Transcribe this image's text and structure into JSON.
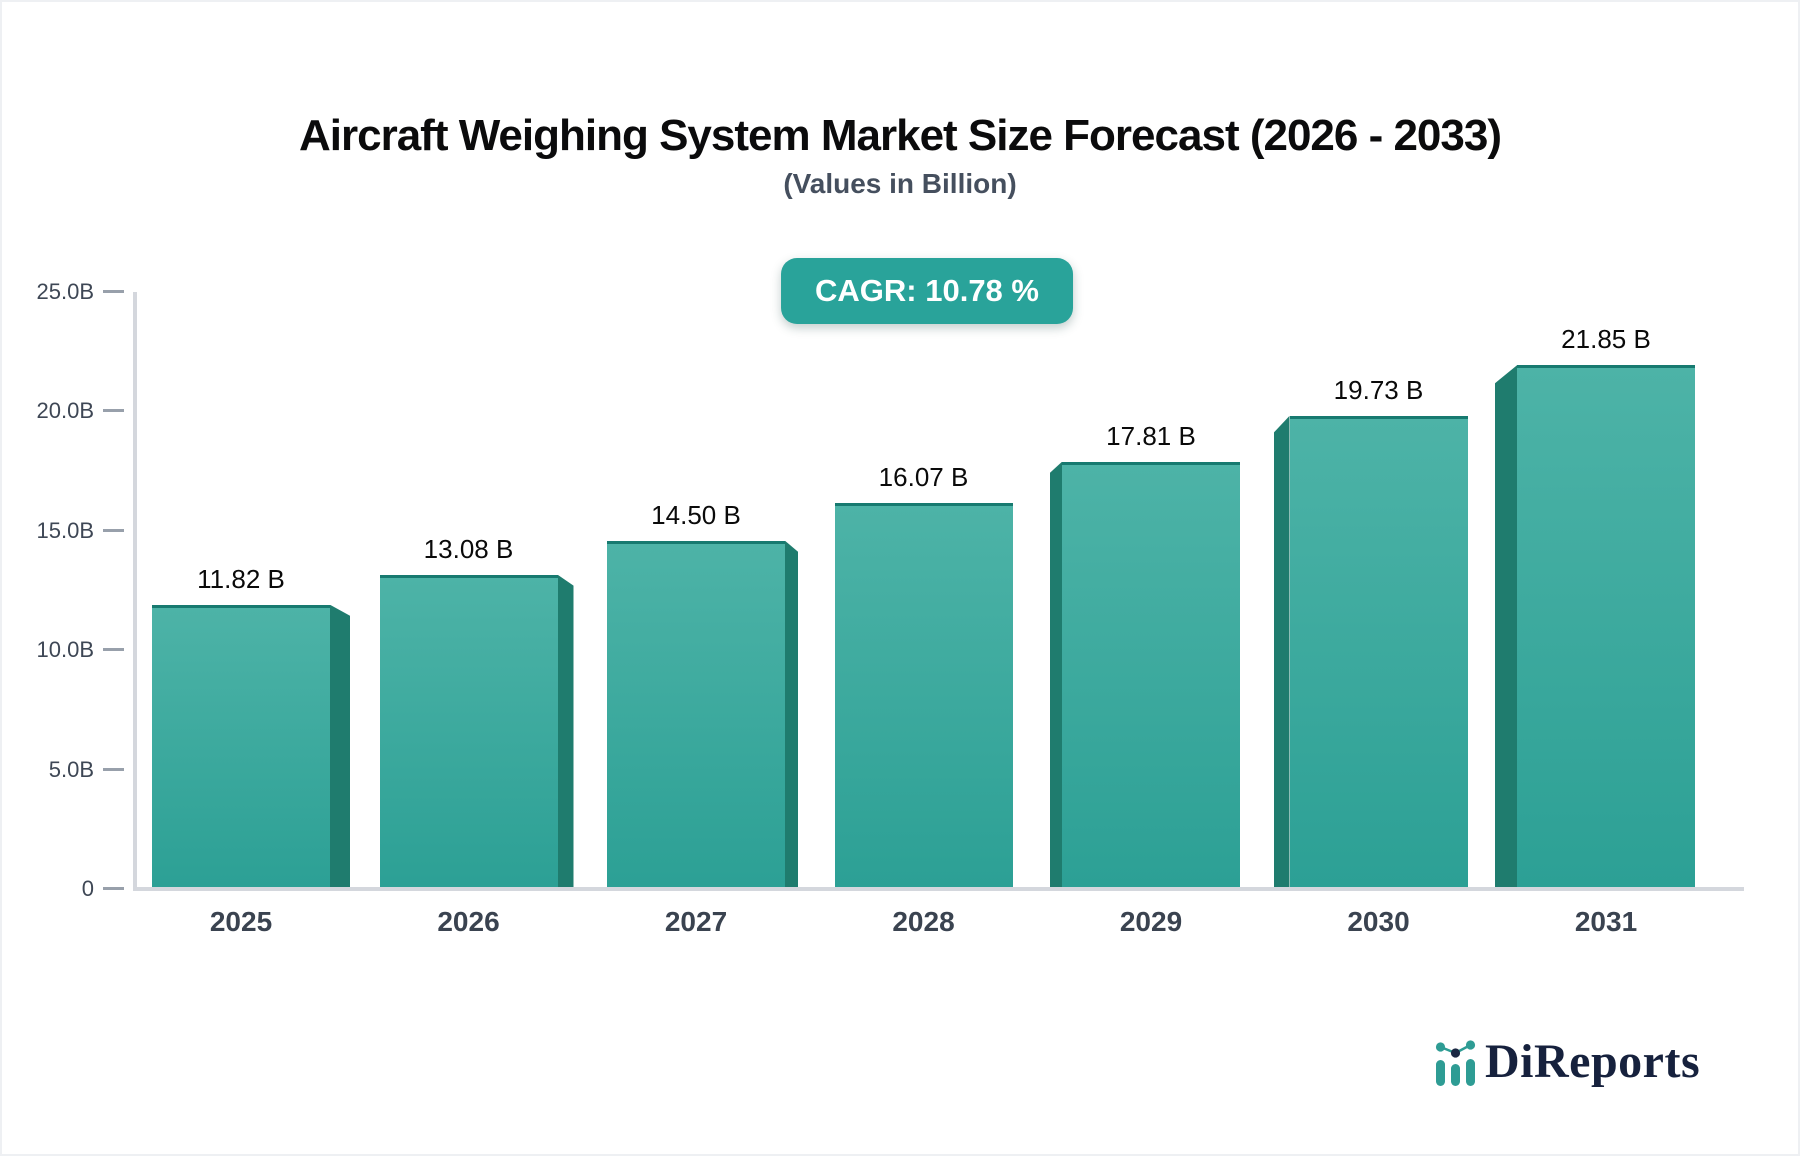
{
  "header": {
    "title": "Aircraft Weighing System Market Size Forecast (2026 - 2033)",
    "subtitle": "(Values in Billion)",
    "cagr_badge": "CAGR: 10.78 %"
  },
  "chart_data": {
    "type": "bar",
    "title": "Aircraft Weighing System Market Size Forecast (2026 - 2033)",
    "subtitle": "(Values in Billion)",
    "cagr_percent": 10.78,
    "unit": "Billion",
    "categories": [
      "2025",
      "2026",
      "2027",
      "2028",
      "2029",
      "2030",
      "2031"
    ],
    "values": [
      11.82,
      13.08,
      14.5,
      16.07,
      17.81,
      19.73,
      21.85
    ],
    "value_labels": [
      "11.82 B",
      "13.08 B",
      "14.50 B",
      "16.07 B",
      "17.81 B",
      "19.73 B",
      "21.85 B"
    ],
    "ylim": [
      0,
      25
    ],
    "yticks": [
      {
        "value": 0,
        "label": "0"
      },
      {
        "value": 5,
        "label": "5.0B"
      },
      {
        "value": 10,
        "label": "10.0B"
      },
      {
        "value": 15,
        "label": "15.0B"
      },
      {
        "value": 20,
        "label": "20.0B"
      },
      {
        "value": 25,
        "label": "25.0B"
      }
    ],
    "grid": false,
    "legend": false,
    "colors": {
      "bar_top": "#4db3a7",
      "bar_bottom": "#2ca095",
      "bar_side": "#1f7c6e",
      "bar_top_edge": "#177a70",
      "accent": "#29a39a",
      "axis_line": "#d4d7dd",
      "tick_dash": "#98a0ab",
      "axis_text": "#3e4755"
    }
  },
  "branding": {
    "logo_text": "DiReports",
    "logo_icon": "mini-bar-chart-trend-icon",
    "logo_teal": "#2e9c94",
    "logo_navy": "#1a2742"
  }
}
